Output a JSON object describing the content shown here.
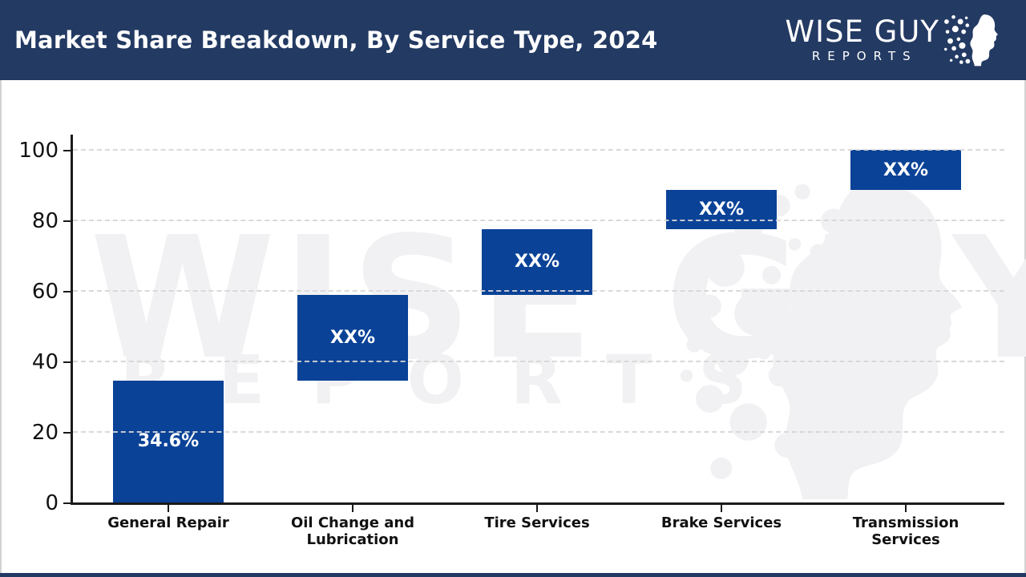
{
  "header": {
    "title": "Market Share Breakdown, By Service Type, 2024",
    "bg_color": "#233a63",
    "logo": {
      "line1": "WISE GUY",
      "line2": "REPORTS"
    }
  },
  "watermark": {
    "line1": "WISE GUY",
    "line2": "REPORTS",
    "color": "#f1f1f3"
  },
  "chart_data": {
    "type": "bar",
    "subtype": "waterfall",
    "title": "Market Share Breakdown, By Service Type, 2024",
    "xlabel": "",
    "ylabel": "",
    "ylim": [
      0,
      105
    ],
    "y_ticks": [
      0,
      20,
      40,
      60,
      80,
      100
    ],
    "grid": true,
    "grid_style": "dashed",
    "bar_color": "#0a4297",
    "categories": [
      "General Repair",
      "Oil Change and\nLubrication",
      "Tire Services",
      "Brake Services",
      "Transmission\nServices"
    ],
    "segments": [
      {
        "category": "General Repair",
        "start": 0,
        "end": 34.6,
        "label": "34.6%"
      },
      {
        "category": "Oil Change and Lubrication",
        "start": 34.6,
        "end": 58.9,
        "label": "XX%"
      },
      {
        "category": "Tire Services",
        "start": 58.9,
        "end": 77.5,
        "label": "XX%"
      },
      {
        "category": "Brake Services",
        "start": 77.5,
        "end": 88.6,
        "label": "XX%"
      },
      {
        "category": "Transmission Services",
        "start": 88.6,
        "end": 100,
        "label": "XX%"
      }
    ]
  }
}
